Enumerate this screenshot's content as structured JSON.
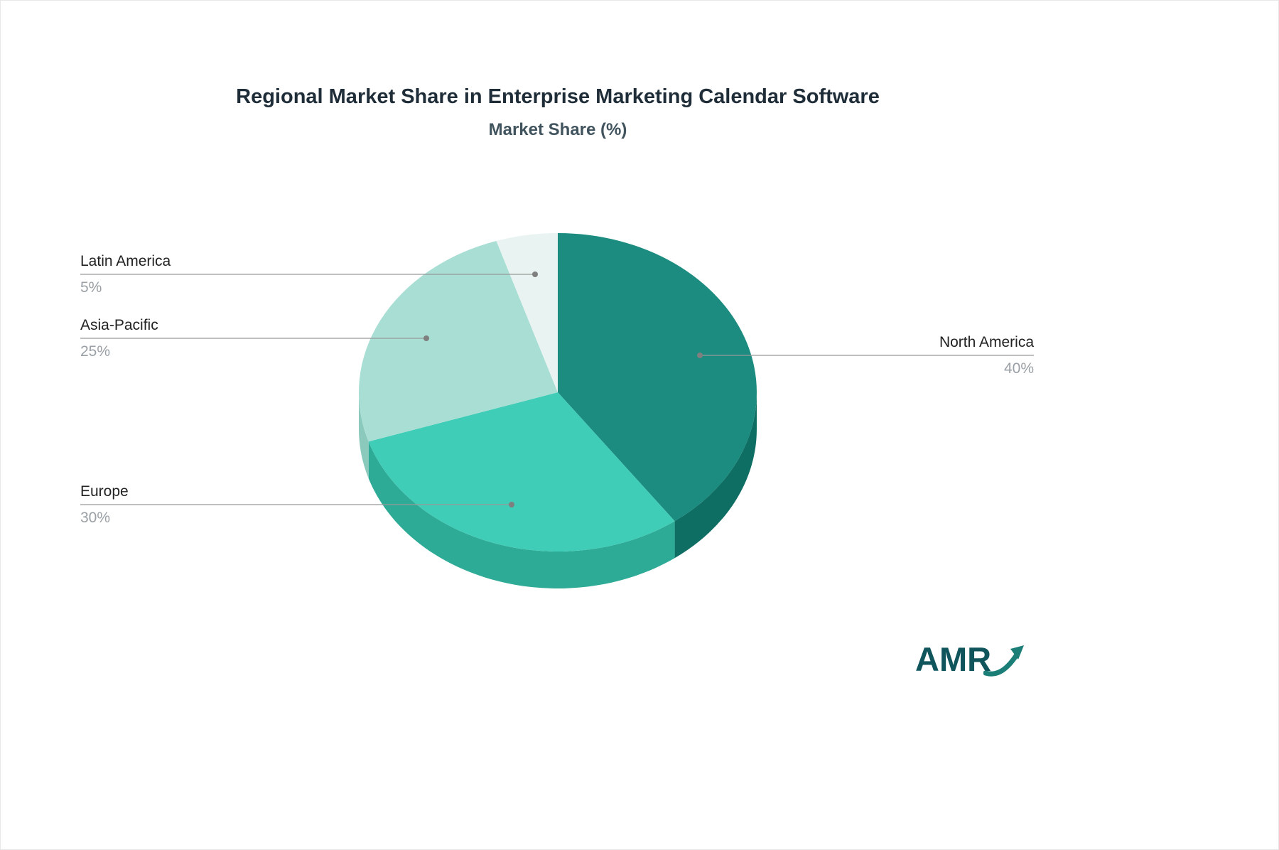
{
  "chart_data": {
    "type": "pie",
    "title": "Regional Market Share in Enterprise Marketing Calendar Software",
    "subtitle": "Market Share (%)",
    "unit": "%",
    "legend_position": "none",
    "label_style": "leader-lines",
    "slices": [
      {
        "id": "north-america",
        "label": "North America",
        "value": 40,
        "display": "40%",
        "color": "#1b8c7f",
        "side_color": "#0f6e63"
      },
      {
        "id": "europe",
        "label": "Europe",
        "value": 30,
        "display": "30%",
        "color": "#3fcdb7",
        "side_color": "#2dab96"
      },
      {
        "id": "asia-pacific",
        "label": "Asia-Pacific",
        "value": 25,
        "display": "25%",
        "color": "#a9ded4",
        "side_color": "#8cc9bd"
      },
      {
        "id": "latin-america",
        "label": "Latin America",
        "value": 5,
        "display": "5%",
        "color": "#e9f4f2",
        "side_color": "#cfe5e1"
      }
    ]
  },
  "logo": {
    "text": "AMR"
  },
  "colors": {
    "title": "#1f2d38",
    "subtitle": "#41545e",
    "label_text": "#222222",
    "percent_text": "#9aa0a5",
    "leader_line": "#999999",
    "leader_dot": "#7f7f7f",
    "logo_text": "#10545c",
    "logo_arrow": "#1b7f78",
    "background": "#ffffff"
  }
}
